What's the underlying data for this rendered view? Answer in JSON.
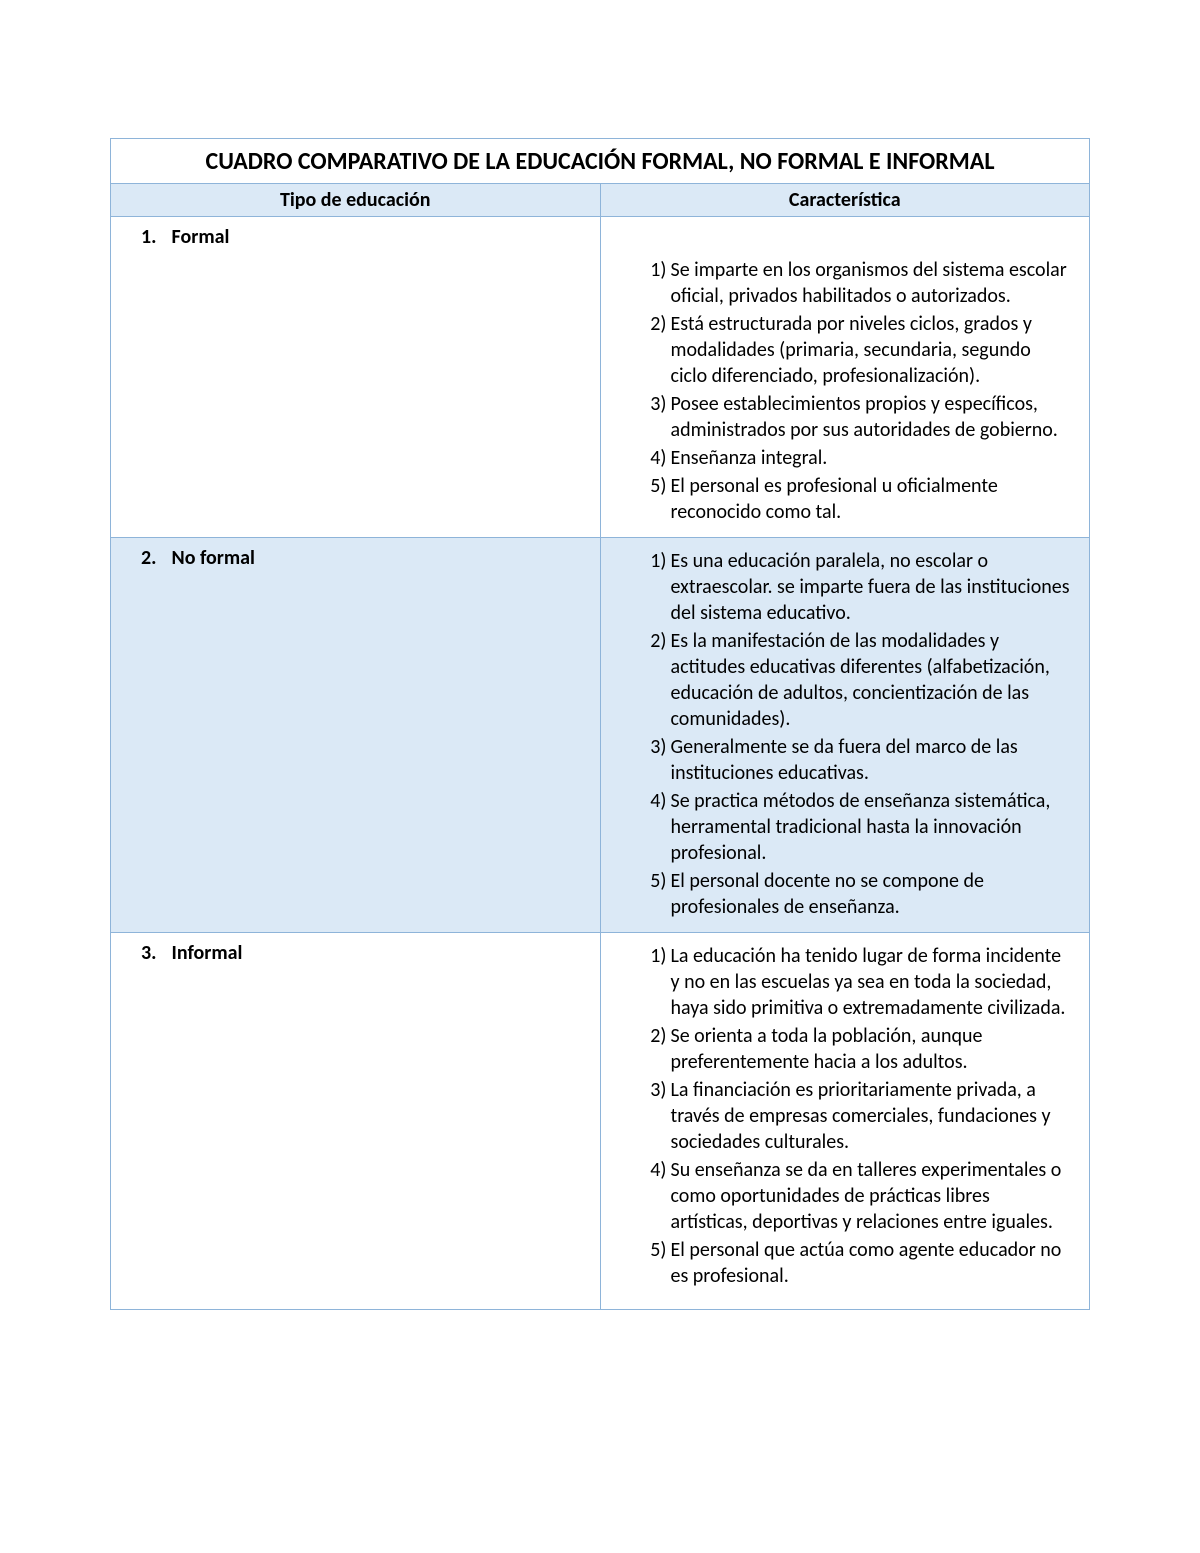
{
  "title": "CUADRO COMPARATIVO DE LA EDUCACIÓN FORMAL, NO FORMAL E INFORMAL",
  "headers": {
    "tipo": "Tipo de educación",
    "caracteristica": "Característica"
  },
  "rows": [
    {
      "num": "1.",
      "tipo": "Formal",
      "items": [
        "Se imparte en los organismos del sistema escolar oficial, privados habilitados o autorizados.",
        "Está estructurada por niveles ciclos, grados y modalidades (primaria, secundaria, segundo ciclo diferenciado, profesionalización).",
        "Posee establecimientos propios y específicos, administrados por sus autoridades de gobierno.",
        "Enseñanza integral.",
        "El personal es profesional u oficialmente reconocido como tal."
      ]
    },
    {
      "num": "2.",
      "tipo": "No formal",
      "items": [
        "Es una educación paralela, no escolar o extraescolar. se imparte fuera de las instituciones del sistema educativo.",
        "Es la manifestación de las modalidades y actitudes educativas diferentes (alfabetización, educación de adultos, concientización de las comunidades).",
        "Generalmente se da fuera del marco de las instituciones educativas.",
        "Se practica métodos de enseñanza sistemática, herramental tradicional hasta la innovación profesional.",
        "El personal docente no se compone de profesionales de enseñanza."
      ]
    },
    {
      "num": "3.",
      "tipo": "Informal",
      "items": [
        "La educación ha tenido lugar de forma incidente y no en las escuelas ya sea en toda la sociedad, haya sido primitiva o extremadamente civilizada.",
        "Se orienta a toda la población, aunque preferentemente hacia a los adultos.",
        "La financiación es prioritariamente privada, a través de empresas comerciales, fundaciones y sociedades culturales.",
        "Su enseñanza se da en talleres experimentales o como oportunidades de prácticas libres artísticas, deportivas y relaciones entre iguales.",
        "El personal que actúa como agente educador no es profesional."
      ]
    }
  ]
}
